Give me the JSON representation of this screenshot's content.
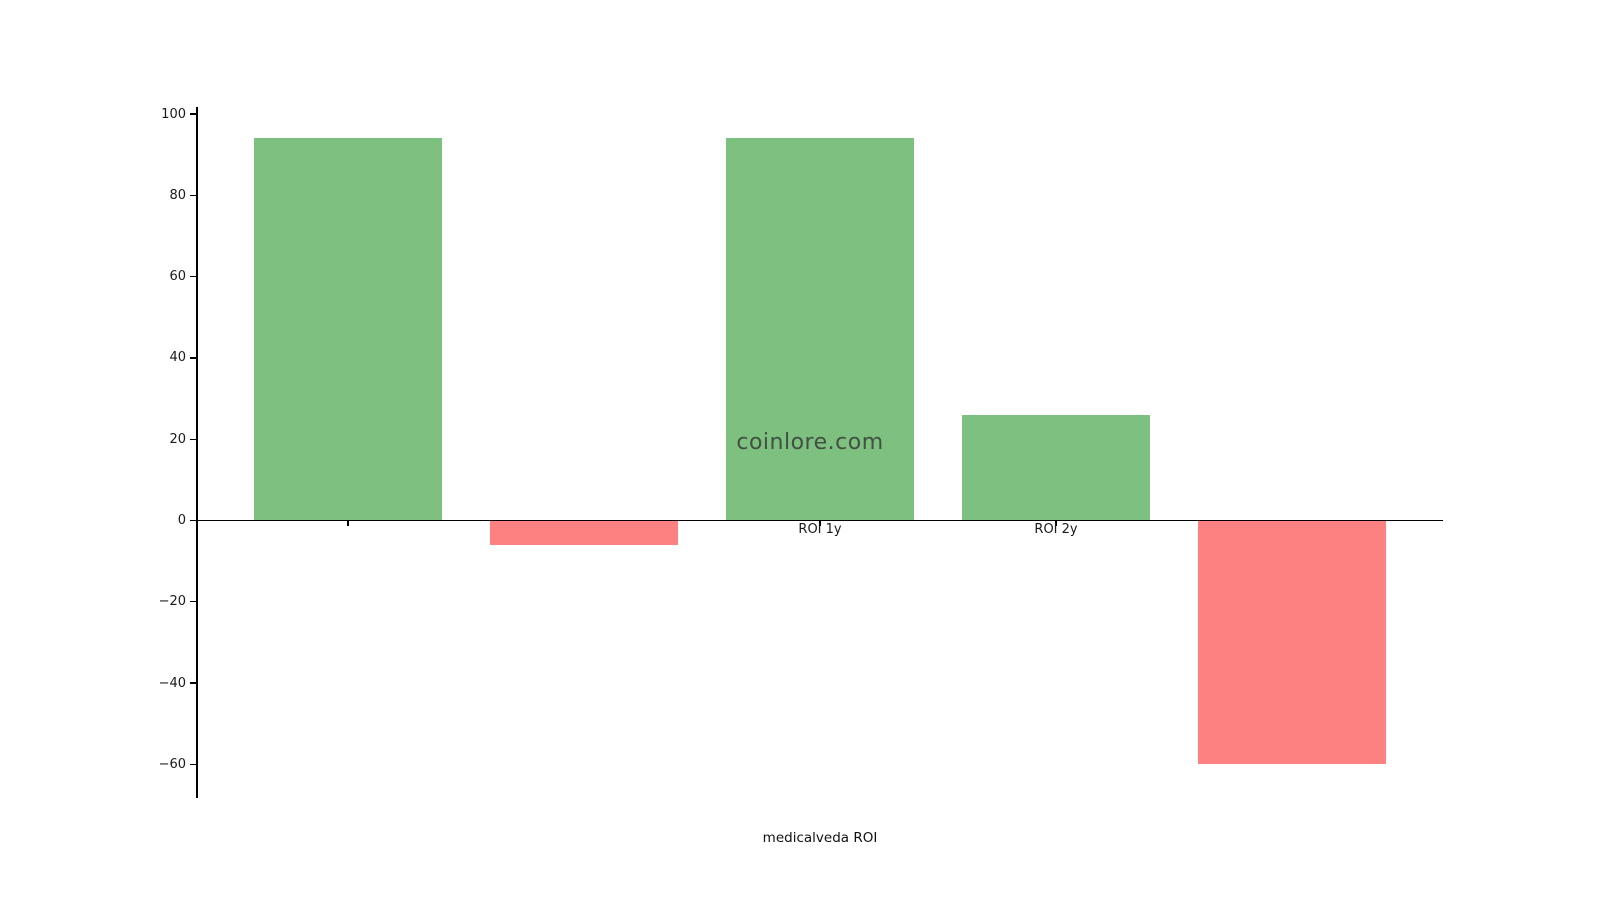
{
  "page": {
    "background": "#ffffff"
  },
  "chart_data": {
    "type": "bar",
    "title": "medicalveda ROI",
    "watermark": "coinlore.com",
    "categories": [
      "",
      "",
      "ROI 1y",
      "ROI 2y",
      ""
    ],
    "values": [
      94,
      -6,
      94,
      26,
      -60
    ],
    "ytick_values": [
      100,
      80,
      60,
      40,
      20,
      0,
      -20,
      -40,
      -60
    ],
    "ytick_labels": [
      "100",
      "80",
      "60",
      "40",
      "20",
      "0",
      "−20",
      "−40",
      "−60"
    ],
    "ylim": [
      -68,
      102
    ],
    "xlabel": "",
    "ylabel": "",
    "grid": false,
    "legend": false,
    "positive_color": "#7ec080",
    "negative_color": "#fe8181",
    "axis_color": "#000000",
    "tick_label_color": "#1a1a1a",
    "watermark_color": "#373c37"
  }
}
